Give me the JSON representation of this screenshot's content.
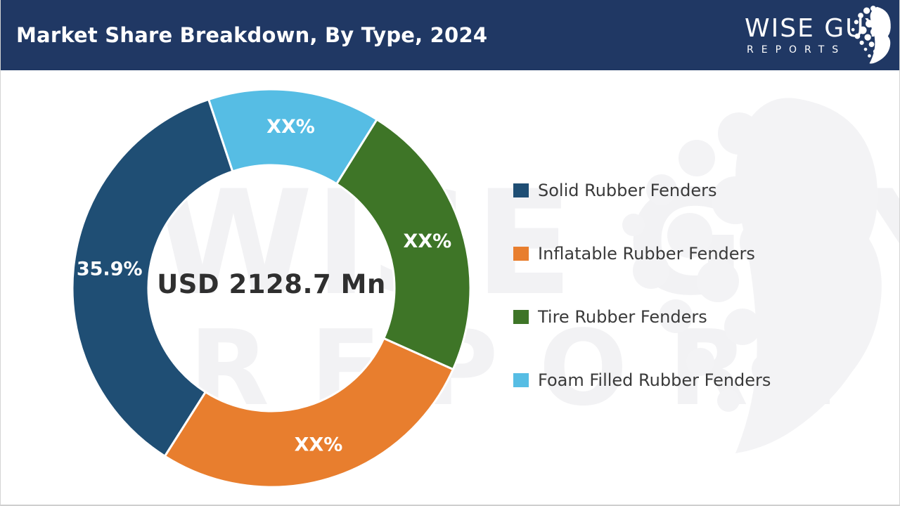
{
  "header": {
    "title": "Market Share Breakdown, By Type, 2024",
    "background_color": "#203864",
    "logo": {
      "line1": "WISE GUY",
      "line2": "REPORTS"
    }
  },
  "watermark": {
    "line1": "WISE GUY",
    "line2": "REPORTS"
  },
  "chart_data": {
    "type": "pie",
    "subtype": "donut",
    "title": "Market Share Breakdown, By Type, 2024",
    "center_label": "USD 2128.7 Mn",
    "start_angle_deg": 108.4,
    "direction": "counterclockwise",
    "legend_position": "right",
    "segments": [
      {
        "name": "Solid Rubber Fenders",
        "label": "35.9%",
        "value_pct": 35.9,
        "color": "#1f4e74"
      },
      {
        "name": "Inflatable Rubber Fenders",
        "label": "XX%",
        "value_pct": 27.3,
        "color": "#e87e2e"
      },
      {
        "name": "Tire Rubber Fenders",
        "label": "XX%",
        "value_pct": 22.8,
        "color": "#3e7527"
      },
      {
        "name": "Foam Filled Rubber Fenders",
        "label": "XX%",
        "value_pct": 14.0,
        "color": "#56bde4"
      }
    ]
  }
}
